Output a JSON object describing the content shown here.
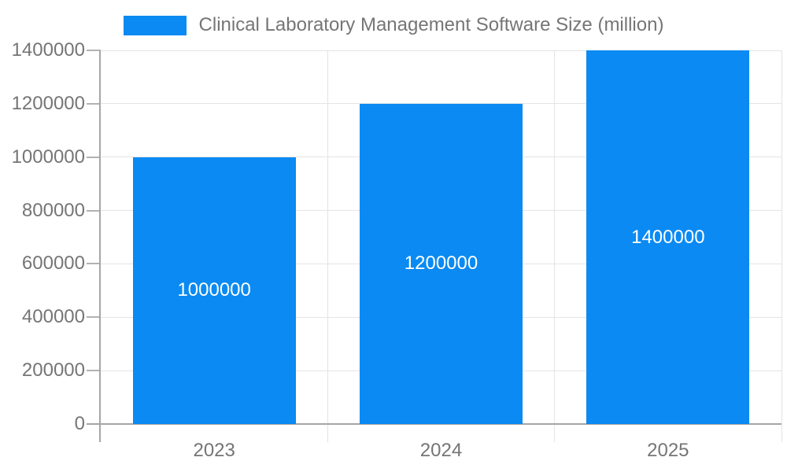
{
  "chart_data": {
    "type": "bar",
    "title": "Clinical Laboratory Management Software Size (million)",
    "legend_position": "top",
    "categories": [
      "2023",
      "2024",
      "2025"
    ],
    "values": [
      1000000,
      1200000,
      1400000
    ],
    "value_labels": [
      "1000000",
      "1200000",
      "1400000"
    ],
    "xlabel": "",
    "ylabel": "",
    "ylim": [
      0,
      1400000
    ],
    "yticks": [
      0,
      200000,
      400000,
      600000,
      800000,
      1000000,
      1200000,
      1400000
    ],
    "ytick_labels": [
      "0",
      "200000",
      "400000",
      "600000",
      "800000",
      "1000000",
      "1200000",
      "1400000"
    ],
    "grid": true,
    "colors": {
      "bar": "#0a8af2",
      "bar_value_text": "#ffffff",
      "axis_text": "#757575",
      "gridline": "#e4e4e4",
      "axis_line": "#a6a6a6",
      "background": "#ffffff"
    }
  }
}
